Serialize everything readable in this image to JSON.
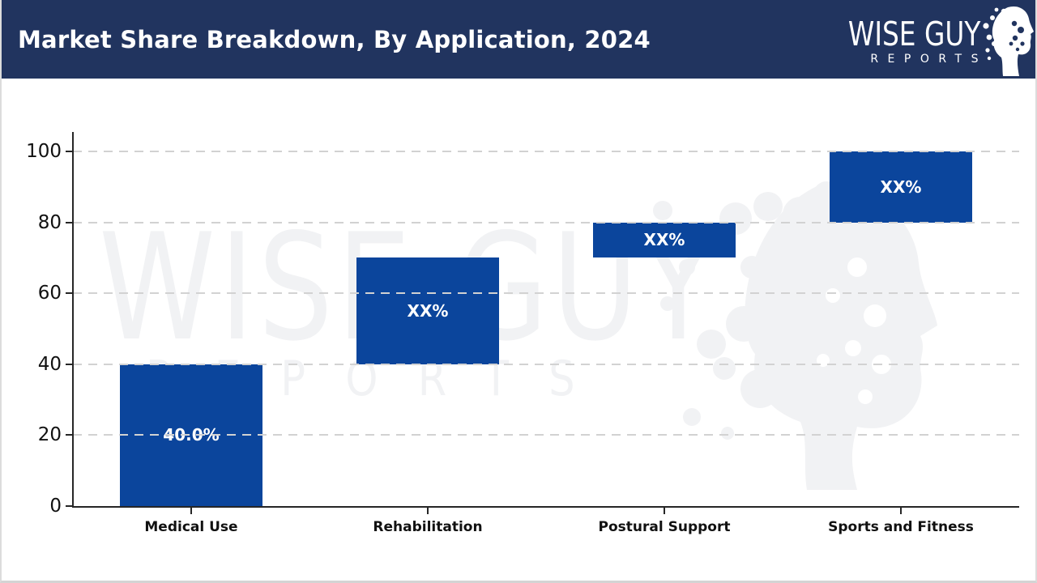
{
  "header": {
    "title": "Market Share Breakdown, By Application, 2024",
    "logo_line1": "WISE GUY",
    "logo_line2": "REPORTS"
  },
  "watermark": {
    "line1": "WISE GUY",
    "line2": "REPORTS"
  },
  "colors": {
    "header_bg": "#21345F",
    "header_text": "#FFFFFF",
    "bar": "#0B459C",
    "bar_label": "#FFFFFF",
    "axis": "#262626",
    "grid": "#D2D2D2",
    "tick_label": "#111111",
    "watermark": "#F1F2F4"
  },
  "chart_data": {
    "type": "bar",
    "variant": "floating-segment waterfall (market share breakdown)",
    "title": "Market Share Breakdown, By Application, 2024",
    "categories": [
      "Medical Use",
      "Rehabilitation",
      "Postural Support",
      "Sports and Fitness"
    ],
    "segments": [
      {
        "category": "Medical Use",
        "start": 0,
        "end": 40,
        "share_pct": 40,
        "value_label": "40.0%"
      },
      {
        "category": "Rehabilitation",
        "start": 40,
        "end": 70,
        "share_pct": 30,
        "value_label": "XX%"
      },
      {
        "category": "Postural Support",
        "start": 70,
        "end": 80,
        "share_pct": 10,
        "value_label": "XX%"
      },
      {
        "category": "Sports and Fitness",
        "start": 80,
        "end": 100,
        "share_pct": 20,
        "value_label": "XX%"
      }
    ],
    "xlabel": "",
    "ylabel": "",
    "yticks": [
      0,
      20,
      40,
      60,
      80,
      100
    ],
    "ylim": [
      0,
      105.5
    ],
    "grid": "horizontal dashed, drawn above bars",
    "legend": false,
    "bar_width_fraction": 0.6
  }
}
